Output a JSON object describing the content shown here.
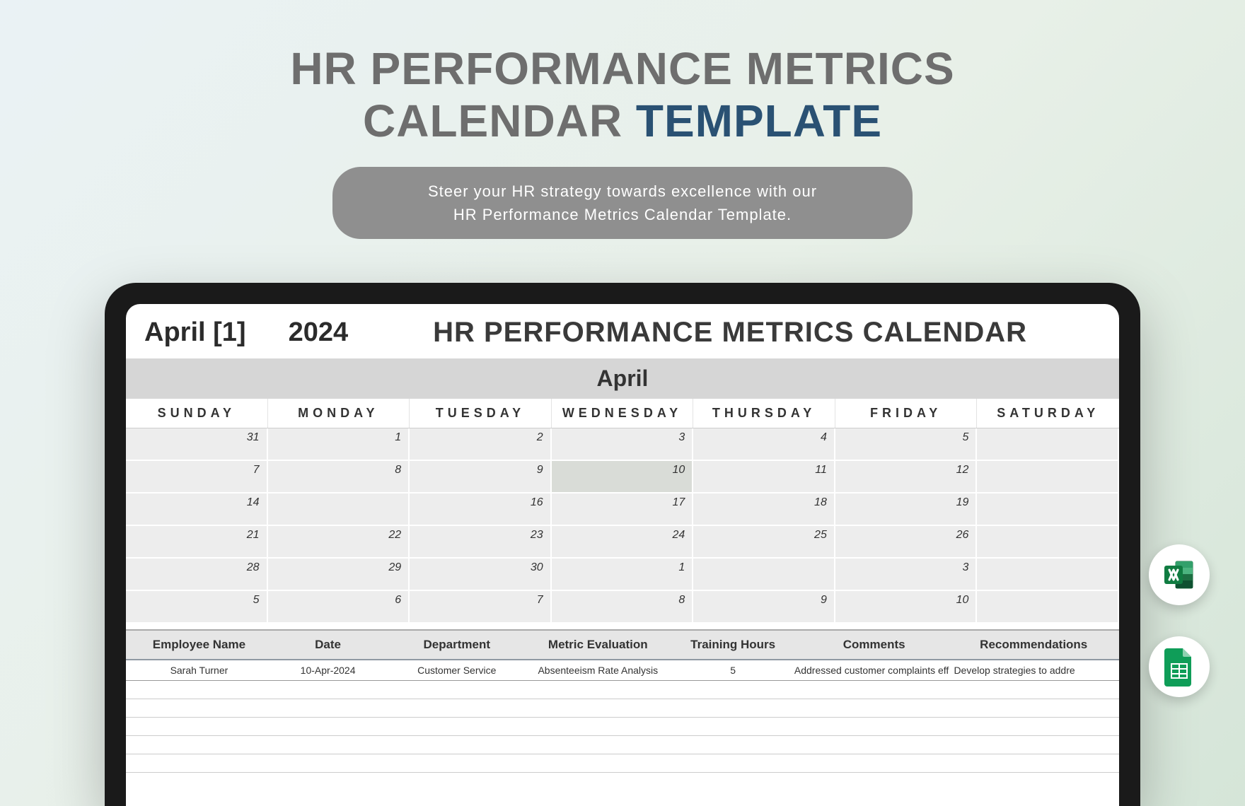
{
  "hero": {
    "line1": "HR PERFORMANCE METRICS",
    "line2_prefix": "CALENDAR ",
    "line2_accent": "TEMPLATE"
  },
  "subtitle": {
    "line1": "Steer your HR strategy towards excellence with our",
    "line2": "HR Performance Metrics Calendar Template."
  },
  "sheet": {
    "month_selector": "April [1]",
    "year": "2024",
    "title": "HR PERFORMANCE METRICS CALENDAR",
    "month_bar": "April",
    "weekdays": [
      "SUNDAY",
      "MONDAY",
      "TUESDAY",
      "WEDNESDAY",
      "THURSDAY",
      "FRIDAY",
      "SATURDAY"
    ],
    "calendar_rows": [
      [
        "31",
        "1",
        "2",
        "3",
        "4",
        "5",
        ""
      ],
      [
        "7",
        "8",
        "9",
        "10",
        "11",
        "12",
        ""
      ],
      [
        "14",
        "",
        "16",
        "17",
        "18",
        "19",
        ""
      ],
      [
        "21",
        "22",
        "23",
        "24",
        "25",
        "26",
        ""
      ],
      [
        "28",
        "29",
        "30",
        "1",
        "",
        "3",
        ""
      ],
      [
        "5",
        "6",
        "7",
        "8",
        "9",
        "10",
        ""
      ]
    ],
    "highlight_cell": {
      "row": 1,
      "col": 3
    },
    "table_headers": [
      "Employee Name",
      "Date",
      "Department",
      "Metric Evaluation",
      "Training Hours",
      "Comments",
      "Recommendations"
    ],
    "table_row": {
      "employee": "Sarah Turner",
      "date": "10-Apr-2024",
      "department": "Customer Service",
      "metric": "Absenteeism Rate Analysis",
      "hours": "5",
      "comments": "Addressed customer complaints eff",
      "recs": "Develop strategies to addre"
    }
  },
  "badges": {
    "excel_color": "#1d6f42",
    "sheets_color": "#0f9d58"
  },
  "colors": {
    "title_grey": "#6e6e6e",
    "title_accent": "#2a5173",
    "pill_bg": "#8f8f8f",
    "cell_bg": "#ededed",
    "highlight_bg": "#d9dcd7"
  }
}
